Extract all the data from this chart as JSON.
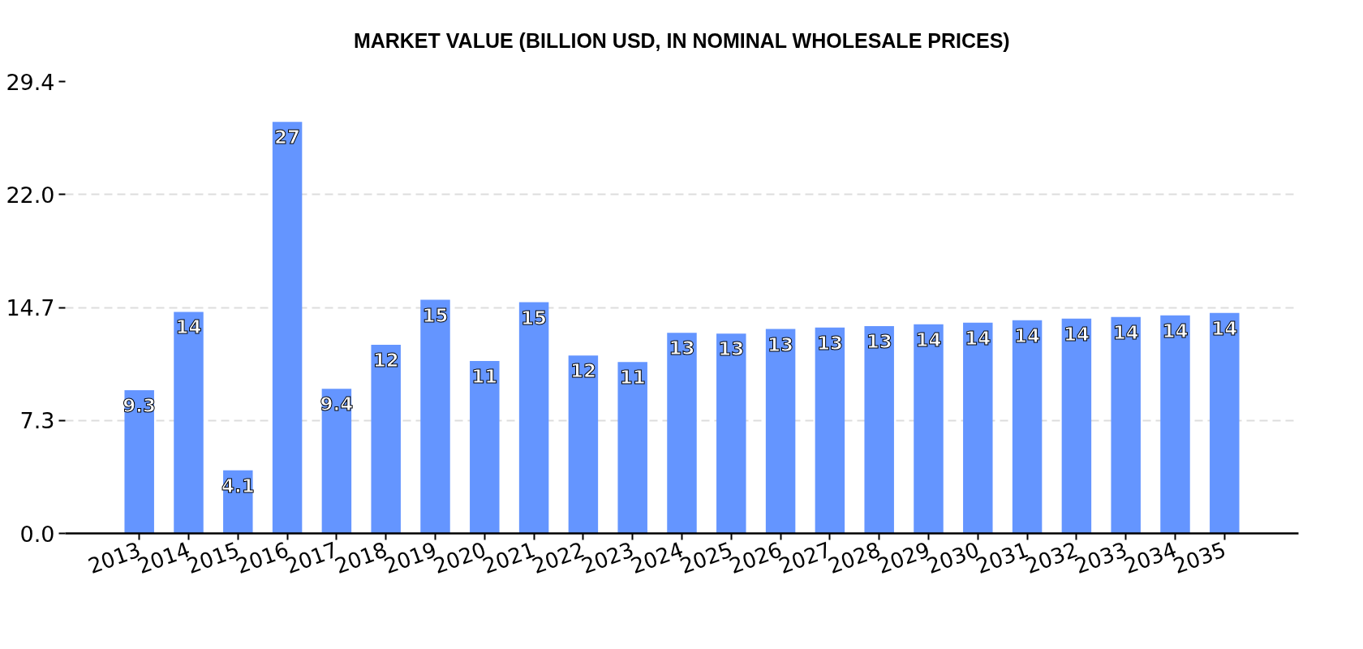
{
  "chart_data": {
    "type": "bar",
    "title": "MARKET VALUE (BILLION USD, IN NOMINAL WHOLESALE PRICES)",
    "categories": [
      "2013",
      "2014",
      "2015",
      "2016",
      "2017",
      "2018",
      "2019",
      "2020",
      "2021",
      "2022",
      "2023",
      "2024",
      "2025",
      "2026",
      "2027",
      "2028",
      "2029",
      "2030",
      "2031",
      "2032",
      "2033",
      "2034",
      "2035"
    ],
    "values": [
      9.31,
      14.41,
      4.11,
      26.77,
      9.41,
      12.27,
      15.2,
      11.22,
      15.04,
      11.57,
      11.15,
      13.05,
      13.0,
      13.3,
      13.4,
      13.48,
      13.61,
      13.71,
      13.87,
      13.98,
      14.08,
      14.18,
      14.34
    ],
    "value_labels": [
      "9.3",
      "14",
      "4.1",
      "27",
      "9.4",
      "12",
      "15",
      "11",
      "15",
      "12",
      "11",
      "13",
      "13",
      "13",
      "13",
      "13",
      "14",
      "14",
      "14",
      "14",
      "14",
      "14",
      "14"
    ],
    "color": "#6495ff",
    "ylim": [
      0,
      29.4
    ],
    "yticks": [
      {
        "value": 0,
        "label": "0.0"
      },
      {
        "value": 7.35,
        "label": "7.3"
      },
      14.7,
      {
        "value": 22.05,
        "label": "22.0"
      },
      29.4
    ],
    "grid": "y"
  }
}
